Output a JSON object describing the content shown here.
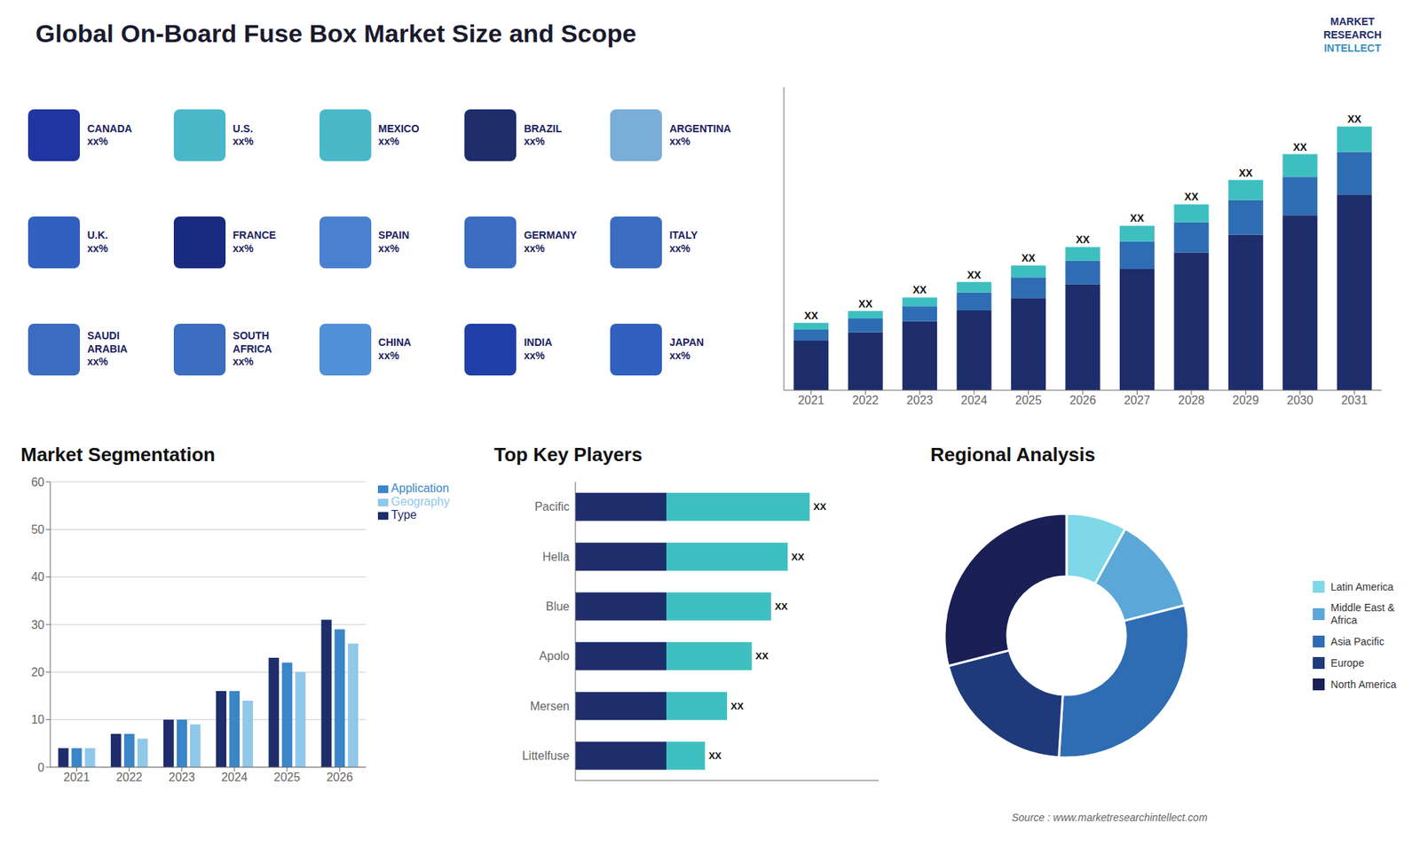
{
  "title": "Global On-Board Fuse Box Market Size and Scope",
  "annotations": [
    "Source : www.marketresearchintellect.com",
    "MARKET",
    "RESEARCH",
    "INTELLECT"
  ],
  "chart_data": [
    {
      "type": "map",
      "categories": [
        "CANADA\nxx%",
        "U.S.\nxx%",
        "MEXICO\nxx%",
        "BRAZIL\nxx%",
        "ARGENTINA\nxx%",
        "U.K.\nxx%",
        "FRANCE\nxx%",
        "SPAIN\nxx%",
        "GERMANY\nxx%",
        "ITALY\nxx%",
        "SAUDI\nARABIA\nxx%",
        "SOUTH\nAFRICA\nxx%",
        "CHINA\nxx%",
        "INDIA\nxx%",
        "JAPAN\nxx%"
      ],
      "colors": [
        "#2035a0",
        "#4ab8c8",
        "#4ab8c8",
        "#1e2d6b",
        "#7aaed8",
        "#3060c0",
        "#1a2a80",
        "#4a80d0",
        "#3a6cc0",
        "#3a6cc0",
        "#3a6cc0",
        "#3a6cc0",
        "#5090d8",
        "#2040a8",
        "#3060c0"
      ]
    },
    {
      "type": "bar",
      "stacked": true,
      "categories": [
        "2021",
        "2022",
        "2023",
        "2024",
        "2025",
        "2026",
        "2027",
        "2028",
        "2029",
        "2030",
        "2031"
      ],
      "series": [
        {
          "color": "#1e2d6b",
          "values": [
            1.8,
            2.1,
            2.5,
            2.9,
            3.35,
            3.85,
            4.4,
            5.0,
            5.65,
            6.35,
            7.1
          ]
        },
        {
          "color": "#2e6db4",
          "values": [
            0.4,
            0.5,
            0.55,
            0.65,
            0.75,
            0.85,
            1.0,
            1.1,
            1.25,
            1.4,
            1.55
          ]
        },
        {
          "color": "#3ebfbf",
          "values": [
            0.25,
            0.28,
            0.32,
            0.38,
            0.43,
            0.5,
            0.57,
            0.65,
            0.73,
            0.82,
            0.92
          ],
          "value_labels": [
            "XX",
            "XX",
            "XX",
            "XX",
            "XX",
            "XX",
            "XX",
            "XX",
            "XX",
            "XX",
            "XX"
          ]
        }
      ],
      "ylim": [
        0,
        11
      ],
      "tick_labels": "x",
      "data_labels": true
    },
    {
      "type": "bar",
      "title": "Market Segmentation",
      "categories": [
        "2021",
        "2022",
        "2023",
        "2024",
        "2025",
        "2026"
      ],
      "series": [
        {
          "name": "Type",
          "color": "#1e2d6b",
          "values": [
            4,
            7,
            10,
            16,
            23,
            31
          ]
        },
        {
          "name": "Application",
          "color": "#3a86c8",
          "values": [
            4,
            7,
            10,
            16,
            22,
            29
          ]
        },
        {
          "name": "Geography",
          "color": "#90c8ea",
          "values": [
            4,
            6,
            9,
            14,
            20,
            26
          ]
        }
      ],
      "ylim": [
        0,
        60
      ],
      "yticks": [
        0,
        10,
        20,
        30,
        40,
        50,
        60
      ],
      "grid": true,
      "legend": "right"
    },
    {
      "type": "bar",
      "title": "Top Key Players",
      "orientation": "horizontal",
      "stacked": true,
      "categories": [
        "Pacific",
        "Hella",
        "Blue",
        "Apolo",
        "Mersen",
        "Littelfuse"
      ],
      "series": [
        {
          "color": "#1e2d6b",
          "values": [
            0.33,
            0.33,
            0.33,
            0.33,
            0.33,
            0.33
          ]
        },
        {
          "color": "#3ebfbf",
          "values": [
            0.52,
            0.44,
            0.38,
            0.31,
            0.22,
            0.14
          ],
          "value_labels": [
            "XX",
            "XX",
            "XX",
            "XX",
            "XX",
            "XX"
          ]
        }
      ],
      "xlim": [
        0,
        1.1
      ],
      "tick_labels": "y",
      "data_labels": true
    },
    {
      "type": "pie",
      "title": "Regional Analysis",
      "categories": [
        "Latin America",
        "Middle East &\nAfrica",
        "Asia Pacific",
        "Europe",
        "North America"
      ],
      "values": [
        0.08,
        0.13,
        0.3,
        0.2,
        0.29
      ],
      "colors": [
        "#7fd8e8",
        "#5ba8d8",
        "#2e6db4",
        "#1e3a7a",
        "#1a2055"
      ],
      "legend": "right"
    }
  ]
}
